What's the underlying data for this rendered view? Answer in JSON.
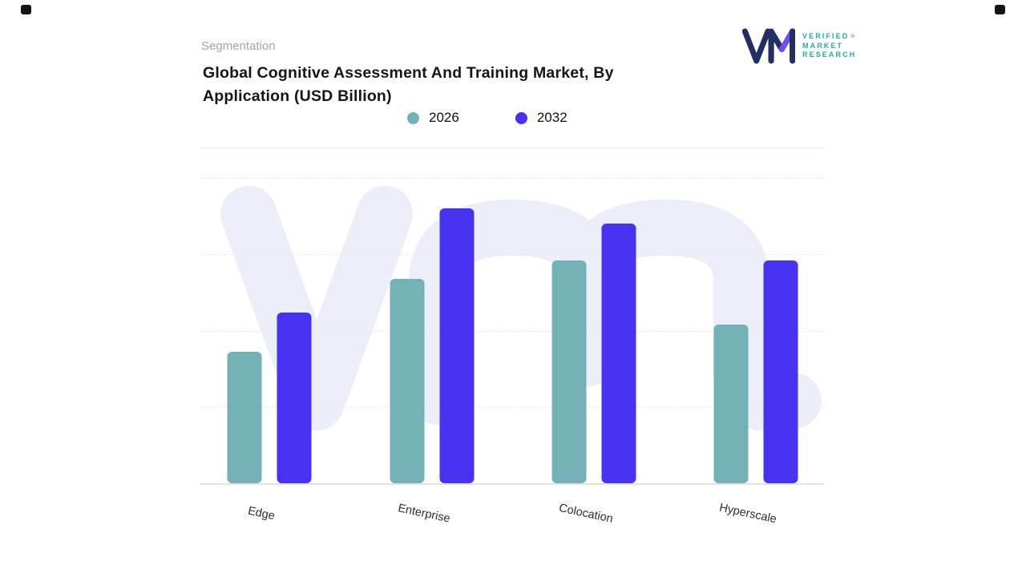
{
  "page": {
    "section_label": "Segmentation",
    "title": "Global Cognitive Assessment And Training Market, By Application (USD Billion)"
  },
  "logo": {
    "lines": [
      "VERIFIED",
      "MARKET",
      "RESEARCH"
    ],
    "registered": "®",
    "colors": {
      "navy": "#232e63",
      "purple": "#6c4df6",
      "teal": "#26a9ae",
      "orange": "#e2603f"
    }
  },
  "chart_data": {
    "type": "bar",
    "title": "Global Cognitive Assessment And Training Market, By Application (USD Billion)",
    "units": "USD Billion",
    "categories": [
      "Edge",
      "Enterprise",
      "Colocation",
      "Hyperscale"
    ],
    "series": [
      {
        "name": "2026",
        "color": "#74b1b6",
        "values": [
          43,
          67,
          73,
          52
        ]
      },
      {
        "name": "2032",
        "color": "#4732f2",
        "values": [
          56,
          90,
          85,
          73
        ]
      }
    ],
    "xlabel": "",
    "ylabel": "",
    "ylim": [
      0,
      100
    ],
    "grid": "horizontal-dashed",
    "legend_position": "top-center"
  }
}
